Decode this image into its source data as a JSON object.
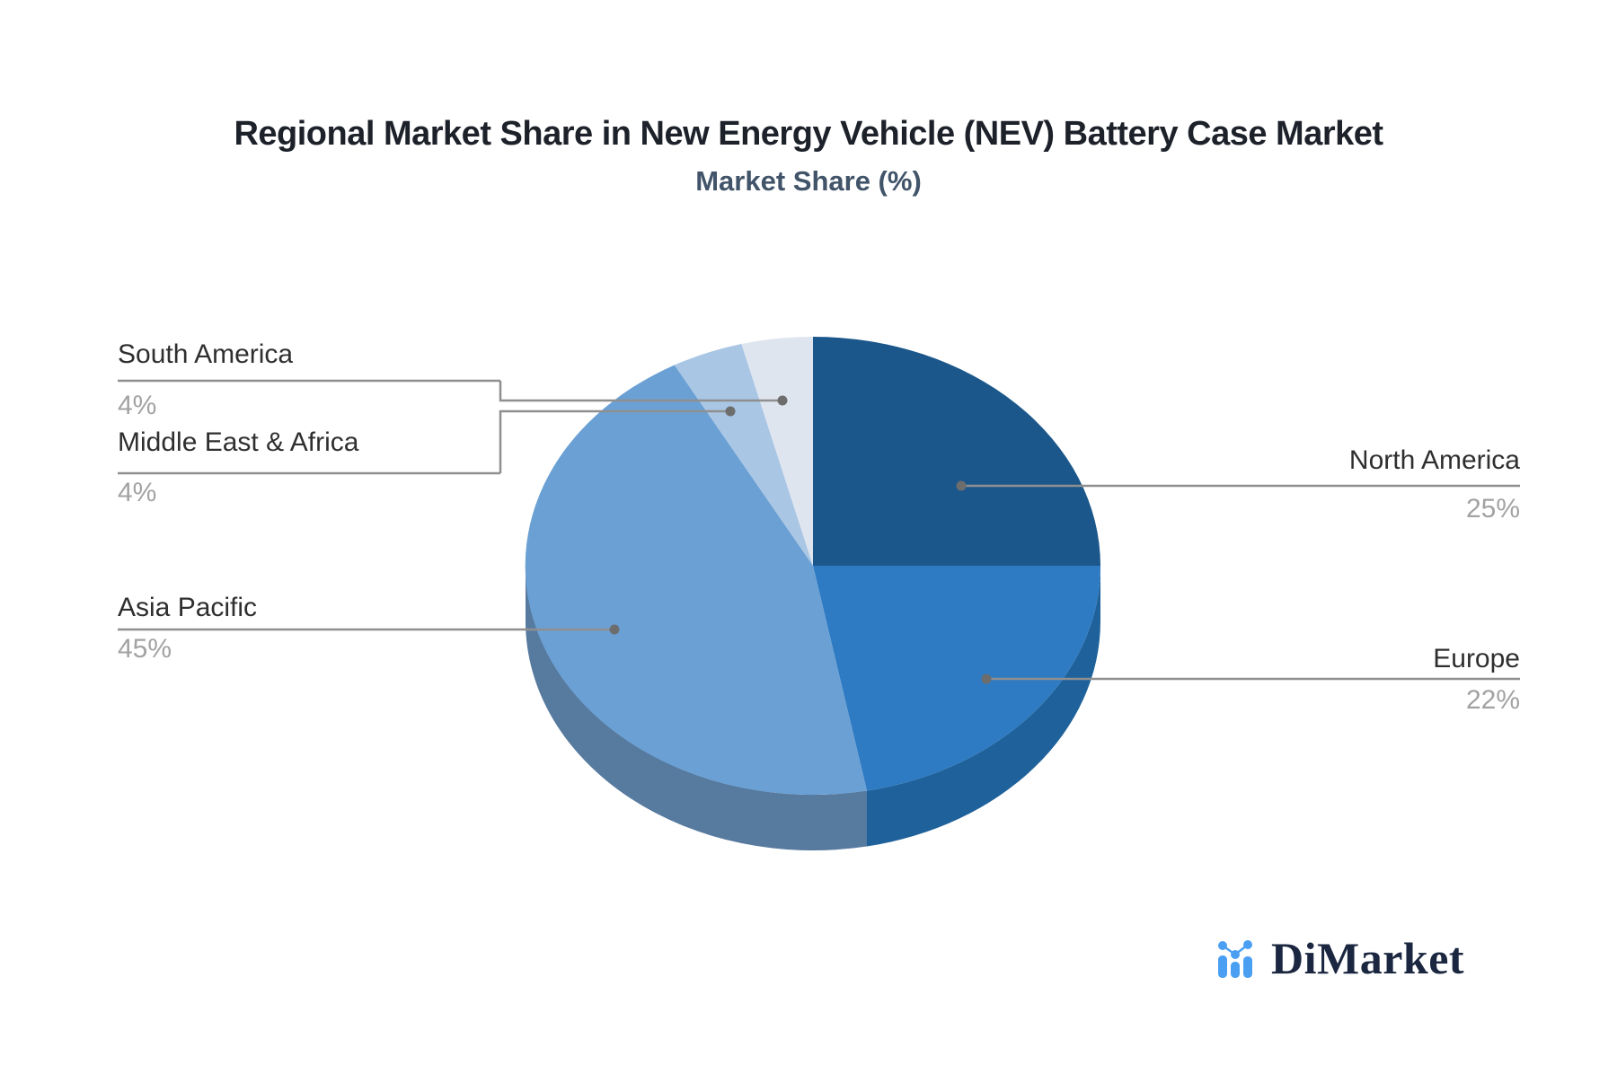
{
  "header": {
    "title": "Regional Market Share in New Energy Vehicle (NEV) Battery Case Market",
    "subtitle": "Market Share (%)"
  },
  "chart_data": {
    "type": "pie",
    "style": "3d-pie",
    "unit": "%",
    "start_angle_deg": 0,
    "direction": "clockwise",
    "legend_position": "callout-labels",
    "segments": [
      {
        "label": "North America",
        "value": 25,
        "pct_label": "25%",
        "color": "#1b578b"
      },
      {
        "label": "Europe",
        "value": 22,
        "pct_label": "22%",
        "color": "#2e7bc3",
        "side_color": "#1f629b"
      },
      {
        "label": "Asia Pacific",
        "value": 45,
        "pct_label": "45%",
        "color": "#6ba0d4",
        "side_color": "#577a9f"
      },
      {
        "label": "Middle East & Africa",
        "value": 4,
        "pct_label": "4%",
        "color": "#a9c6e4"
      },
      {
        "label": "South America",
        "value": 4,
        "pct_label": "4%",
        "color": "#dfe5ef"
      }
    ],
    "callout_line_color": "#8f8f8f",
    "callout_dot_color": "#6d6d6d"
  },
  "logo": {
    "name": "DiMarket",
    "icon": "bar-chart-logo-icon",
    "accent": "#4b9ff2",
    "text_color": "#1b2740"
  }
}
